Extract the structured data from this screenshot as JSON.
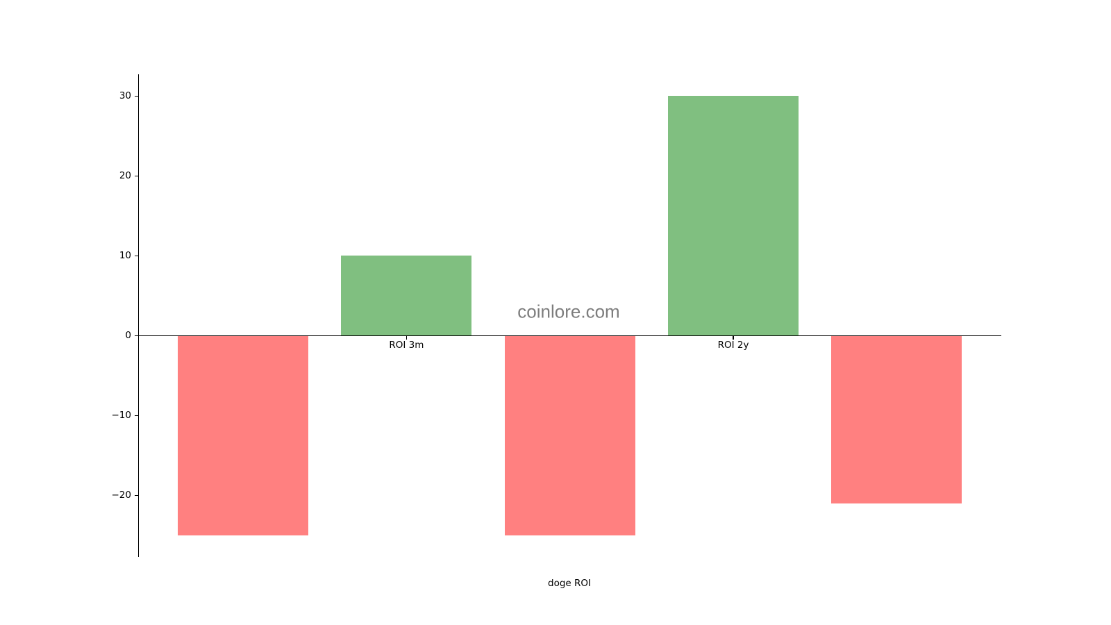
{
  "page": {
    "background_color": "#ffffff"
  },
  "chart_data": {
    "type": "bar",
    "title": "",
    "xlabel": "doge ROI",
    "ylabel": "",
    "categories": [
      "",
      "ROI 3m",
      "",
      "ROI 2y",
      ""
    ],
    "values": [
      -25,
      10,
      -25,
      30,
      -21
    ],
    "bar_colors": [
      "#ff8080",
      "#80bf80",
      "#ff8080",
      "#80bf80",
      "#ff8080"
    ],
    "colors": {
      "positive": "#80bf80",
      "negative": "#ff8080",
      "axis": "#000000",
      "text": "#000000",
      "watermark": "#7d7d7d"
    },
    "yticks": [
      30,
      20,
      10,
      0,
      -10,
      -20
    ],
    "ylim": [
      -27.75,
      32.75
    ],
    "xlim": [
      -0.64,
      4.64
    ],
    "bar_width": 0.8,
    "grid": false,
    "legend": null,
    "watermark": "coinlore.com"
  }
}
